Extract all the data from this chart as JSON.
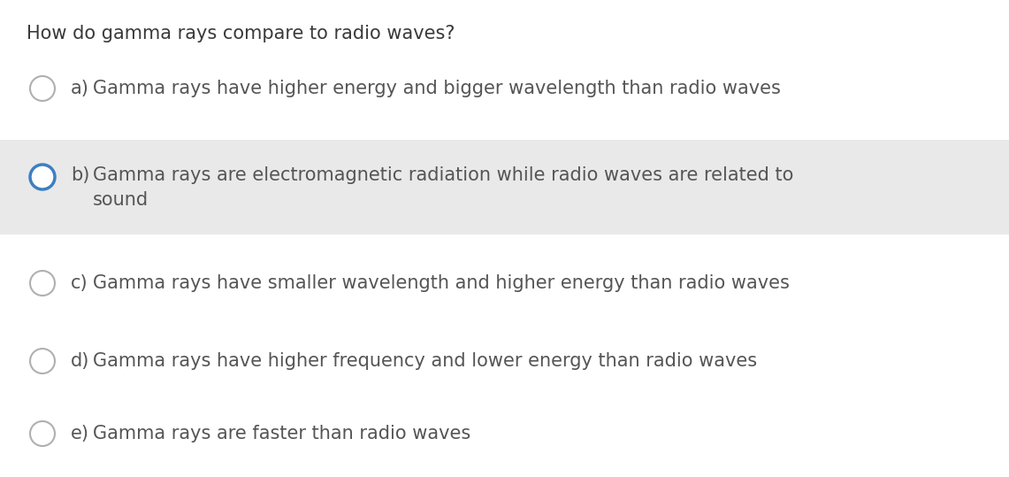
{
  "question": "How do gamma rays compare to radio waves?",
  "options": [
    {
      "label": "a)",
      "text": "Gamma rays have higher energy and bigger wavelength than radio waves",
      "selected": false
    },
    {
      "label": "b)",
      "text_line1": "Gamma rays are electromagnetic radiation while radio waves are related to",
      "text_line2": "sound",
      "selected": true
    },
    {
      "label": "c)",
      "text": "Gamma rays have smaller wavelength and higher energy than radio waves",
      "selected": false
    },
    {
      "label": "d)",
      "text": "Gamma rays have higher frequency and lower energy than radio waves",
      "selected": false
    },
    {
      "label": "e)",
      "text": "Gamma rays are faster than radio waves",
      "selected": false
    }
  ],
  "bg_color": "#ffffff",
  "highlight_color": "#e9e9e9",
  "question_color": "#3a3a3a",
  "option_text_color": "#555555",
  "selected_circle_color": "#3d7fc1",
  "unselected_circle_color": "#b0b0b0",
  "question_fontsize": 15,
  "option_fontsize": 15,
  "font_family": "DejaVu Sans"
}
